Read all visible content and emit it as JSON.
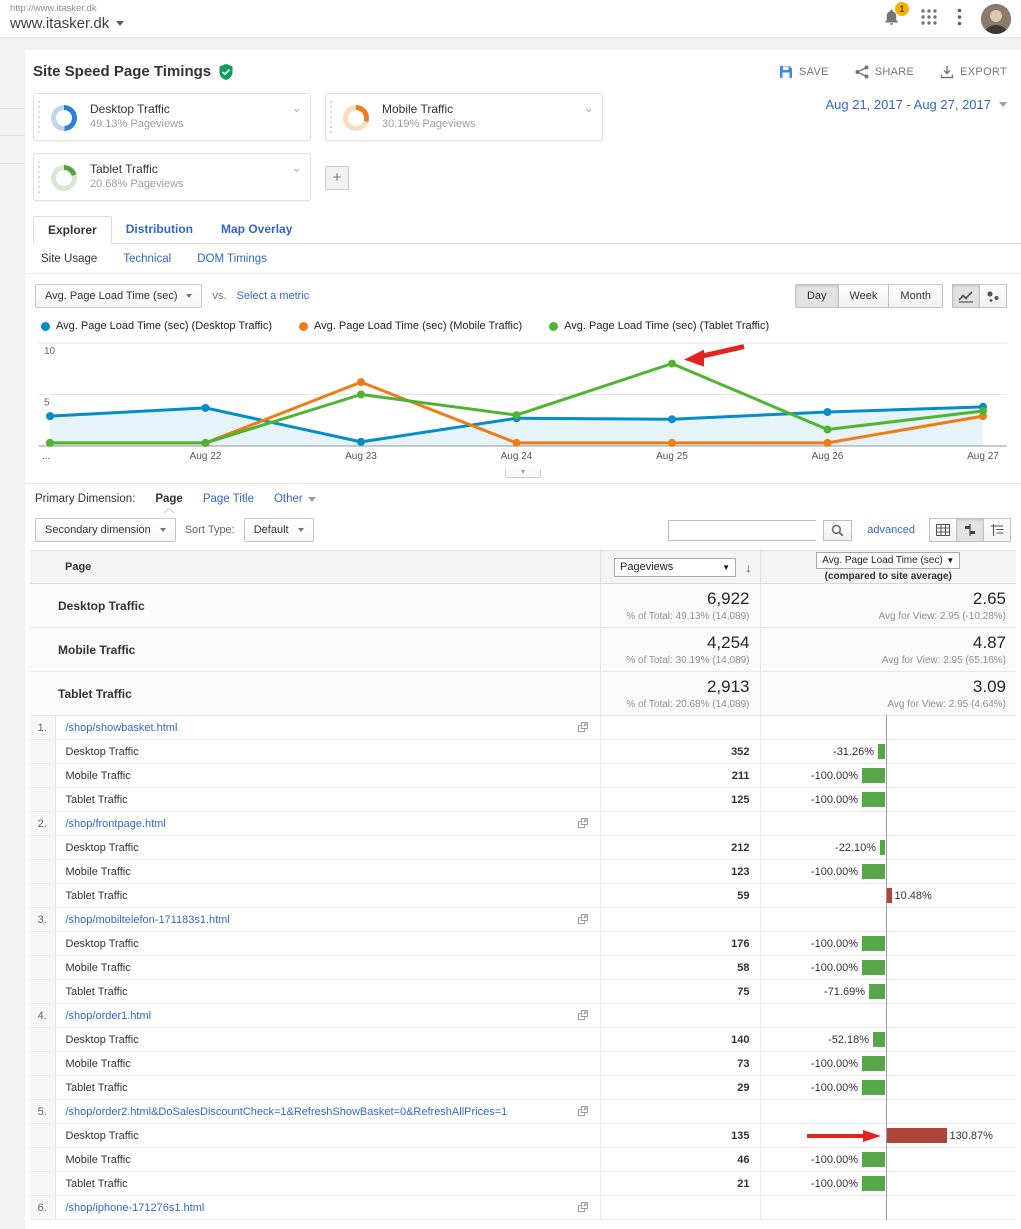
{
  "header": {
    "property_url": "http://www.itasker.dk",
    "site_name": "www.itasker.dk",
    "notification_count": "1"
  },
  "toolbar": {
    "title": "Site Speed Page Timings",
    "save_label": "SAVE",
    "share_label": "SHARE",
    "export_label": "EXPORT",
    "date_range": "Aug 21, 2017 - Aug 27, 2017"
  },
  "segments": {
    "cards": [
      {
        "name": "Desktop Traffic",
        "sub": "49.13% Pageviews",
        "pct": 49.13,
        "color": "#2f7ed8",
        "light": "#bcd7f0"
      },
      {
        "name": "Mobile Traffic",
        "sub": "30.19% Pageviews",
        "pct": 30.19,
        "color": "#ef7c1b",
        "light": "#f9ddc2"
      },
      {
        "name": "Tablet Traffic",
        "sub": "20.68% Pageviews",
        "pct": 20.68,
        "color": "#52a33b",
        "light": "#d6ead0"
      }
    ],
    "add_label": "+"
  },
  "tabs": {
    "items": [
      "Explorer",
      "Distribution",
      "Map Overlay"
    ]
  },
  "subtabs": {
    "items": [
      "Site Usage",
      "Technical",
      "DOM Timings"
    ]
  },
  "controls": {
    "metric_select": "Avg. Page Load Time (sec)",
    "vs_label": "vs.",
    "select_metric": "Select a metric",
    "granularity": [
      "Day",
      "Week",
      "Month"
    ]
  },
  "chart_data": {
    "type": "line",
    "title": "",
    "x_labels": [
      "...",
      "Aug 22",
      "Aug 23",
      "Aug 24",
      "Aug 25",
      "Aug 26",
      "Aug 27"
    ],
    "x_dates": [
      "Aug 21",
      "Aug 22",
      "Aug 23",
      "Aug 24",
      "Aug 25",
      "Aug 26",
      "Aug 27"
    ],
    "ylim": [
      0,
      10
    ],
    "yticks": [
      5,
      10
    ],
    "grid": true,
    "legend_position": "top",
    "series": [
      {
        "name": "Avg. Page Load Time (sec) (Desktop Traffic)",
        "color": "#058dc7",
        "area_fill": true,
        "values": [
          2.9,
          3.7,
          0.4,
          2.7,
          2.6,
          3.3,
          3.8
        ]
      },
      {
        "name": "Avg. Page Load Time (sec) (Mobile Traffic)",
        "color": "#ed7e17",
        "area_fill": false,
        "values": [
          0.3,
          0.3,
          6.2,
          0.3,
          0.3,
          0.3,
          2.9
        ]
      },
      {
        "name": "Avg. Page Load Time (sec) (Tablet Traffic)",
        "color": "#50b432",
        "area_fill": false,
        "values": [
          0.3,
          0.3,
          5.0,
          3.0,
          8.0,
          1.6,
          3.4
        ]
      }
    ],
    "annotation": {
      "type": "red-arrow",
      "target_series": "Avg. Page Load Time (sec) (Tablet Traffic)",
      "target_x": "Aug 25"
    }
  },
  "dims": {
    "label": "Primary Dimension:",
    "items": [
      "Page",
      "Page Title",
      "Other"
    ]
  },
  "table_controls": {
    "secondary_dimension": "Secondary dimension",
    "sort_type_label": "Sort Type:",
    "sort_type_value": "Default",
    "advanced_label": "advanced",
    "search_value": ""
  },
  "table": {
    "col_page": "Page",
    "col_pageviews": "Pageviews",
    "col_metric": "Avg. Page Load Time (sec)",
    "col_metric_sub": "(compared to site average)",
    "summary_rows": [
      {
        "label": "Desktop Traffic",
        "views": "6,922",
        "views_sub": "% of Total: 49.13% (14,089)",
        "metric": "2.65",
        "metric_sub": "Avg for View: 2.95 (-10.28%)"
      },
      {
        "label": "Mobile Traffic",
        "views": "4,254",
        "views_sub": "% of Total: 30.19% (14,089)",
        "metric": "4.87",
        "metric_sub": "Avg for View: 2.95 (65.16%)"
      },
      {
        "label": "Tablet Traffic",
        "views": "2,913",
        "views_sub": "% of Total: 20.68% (14,089)",
        "metric": "3.09",
        "metric_sub": "Avg for View: 2.95 (4.64%)"
      }
    ],
    "rows": [
      {
        "num": "1.",
        "page": "/shop/showbasket.html",
        "devices": [
          {
            "name": "Desktop Traffic",
            "views": "352",
            "change": "-31.26%"
          },
          {
            "name": "Mobile Traffic",
            "views": "211",
            "change": "-100.00%"
          },
          {
            "name": "Tablet Traffic",
            "views": "125",
            "change": "-100.00%"
          }
        ]
      },
      {
        "num": "2.",
        "page": "/shop/frontpage.html",
        "devices": [
          {
            "name": "Desktop Traffic",
            "views": "212",
            "change": "-22.10%"
          },
          {
            "name": "Mobile Traffic",
            "views": "123",
            "change": "-100.00%"
          },
          {
            "name": "Tablet Traffic",
            "views": "59",
            "change": "10.48%"
          }
        ]
      },
      {
        "num": "3.",
        "page": "/shop/mobiltelefon-171183s1.html",
        "devices": [
          {
            "name": "Desktop Traffic",
            "views": "176",
            "change": "-100.00%"
          },
          {
            "name": "Mobile Traffic",
            "views": "58",
            "change": "-100.00%"
          },
          {
            "name": "Tablet Traffic",
            "views": "75",
            "change": "-71.69%"
          }
        ]
      },
      {
        "num": "4.",
        "page": "/shop/order1.html",
        "devices": [
          {
            "name": "Desktop Traffic",
            "views": "140",
            "change": "-52.18%"
          },
          {
            "name": "Mobile Traffic",
            "views": "73",
            "change": "-100.00%"
          },
          {
            "name": "Tablet Traffic",
            "views": "29",
            "change": "-100.00%"
          }
        ]
      },
      {
        "num": "5.",
        "page": "/shop/order2.html&DoSalesDiscountCheck=1&RefreshShowBasket=0&RefreshAllPrices=1",
        "devices": [
          {
            "name": "Desktop Traffic",
            "views": "135",
            "change": "130.87%",
            "arrow": true
          },
          {
            "name": "Mobile Traffic",
            "views": "46",
            "change": "-100.00%"
          },
          {
            "name": "Tablet Traffic",
            "views": "21",
            "change": "-100.00%"
          }
        ]
      },
      {
        "num": "6.",
        "page": "/shop/iphone-171276s1.html",
        "devices": []
      }
    ]
  }
}
